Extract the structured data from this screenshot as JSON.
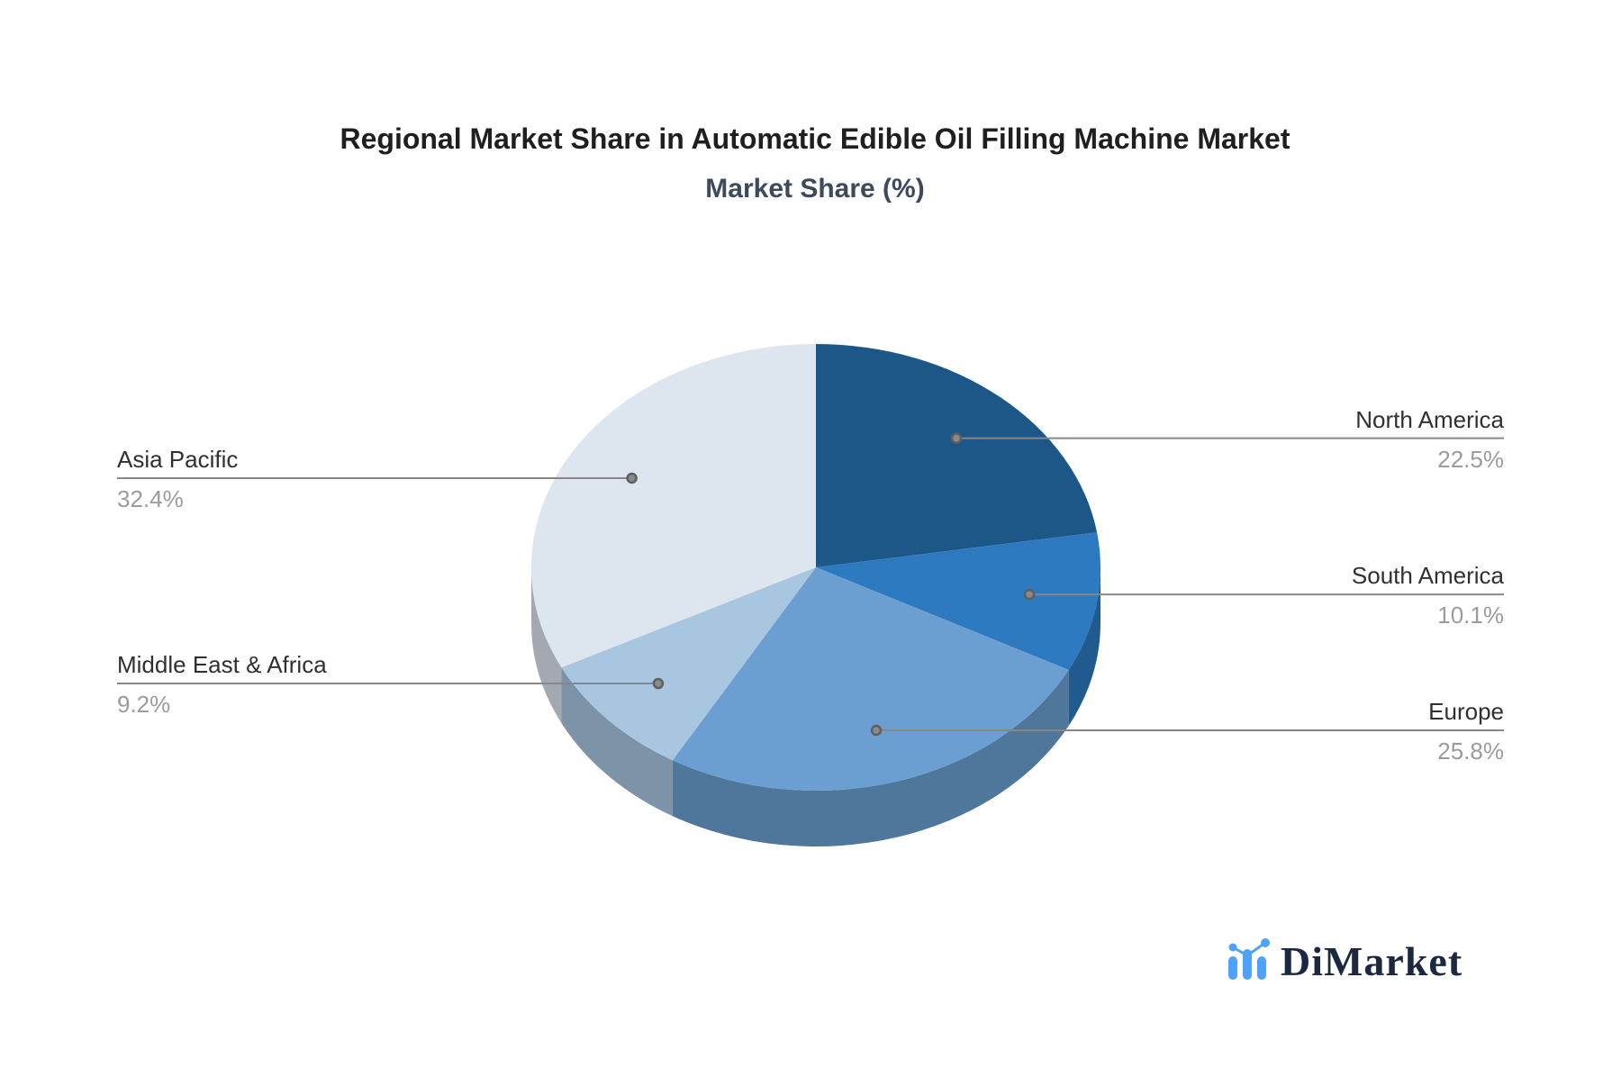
{
  "header": {
    "title": "Regional Market Share in Automatic Edible Oil Filling Machine Market",
    "subtitle": "Market Share (%)"
  },
  "chart_data": {
    "type": "pie",
    "title": "Regional Market Share in Automatic Edible Oil Filling Machine Market",
    "subtitle": "Market Share (%)",
    "unit": "%",
    "effect": "3d",
    "start_angle_deg": 90,
    "direction": "clockwise",
    "legend": "none",
    "slices": [
      {
        "label": "North America",
        "value": 22.5,
        "color": "#1c5788",
        "label_side": "right"
      },
      {
        "label": "South America",
        "value": 10.1,
        "color": "#2d7ac1",
        "label_side": "right"
      },
      {
        "label": "Europe",
        "value": 25.8,
        "color": "#6b9fd2",
        "label_side": "right"
      },
      {
        "label": "Middle East & Africa",
        "value": 9.2,
        "color": "#a9c6e1",
        "label_side": "left"
      },
      {
        "label": "Asia Pacific",
        "value": 32.4,
        "color": "#dde5ef",
        "label_side": "left"
      }
    ]
  },
  "branding": {
    "logo_text": "DiMarket",
    "logo_icon": "bar-chart-icon",
    "logo_icon_color": "#4da3f7",
    "logo_text_color": "#1a2940"
  },
  "colors": {
    "background": "#ffffff",
    "title": "#1f1f1f",
    "subtitle": "#3d4a5c",
    "label_text": "#303030",
    "value_text": "#9b9b9b",
    "leader_line": "#878787",
    "leader_dot": "#8a8a8a"
  }
}
